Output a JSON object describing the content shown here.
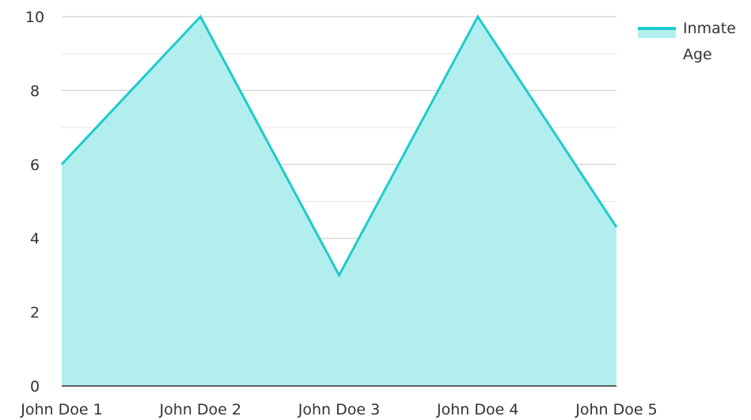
{
  "chart_data": {
    "type": "area",
    "categories": [
      "John Doe 1",
      "John Doe 2",
      "John Doe 3",
      "John Doe 4",
      "John Doe 5"
    ],
    "series": [
      {
        "name": "Inmate Age",
        "values": [
          6,
          10,
          3,
          10,
          4.3
        ],
        "color": "#1ecbcc",
        "fill": "#b2eeee"
      }
    ],
    "ylim": [
      0,
      10
    ],
    "yticks": [
      0,
      2,
      4,
      6,
      8,
      10
    ],
    "grid": true,
    "legend": "top-right",
    "legend_lines": [
      "Inmate",
      "Age"
    ]
  }
}
